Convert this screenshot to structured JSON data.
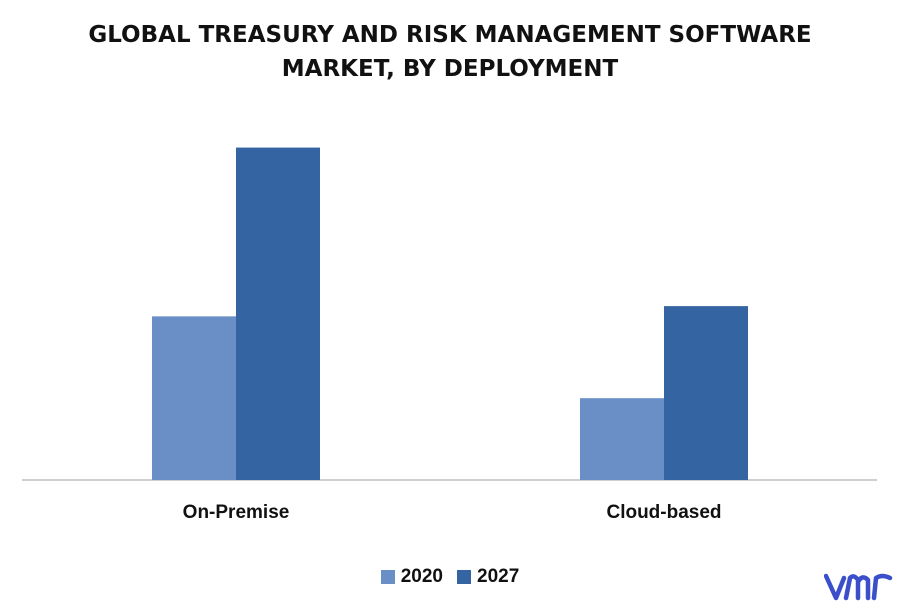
{
  "chart_data": {
    "type": "bar",
    "title_lines": [
      "GLOBAL TREASURY AND RISK MANAGEMENT SOFTWARE",
      "MARKET, BY DEPLOYMENT"
    ],
    "categories": [
      "On-Premise",
      "Cloud-based"
    ],
    "series": [
      {
        "name": "2020",
        "values": [
          3.2,
          1.6
        ],
        "color": "#6a8fc7"
      },
      {
        "name": "2027",
        "values": [
          6.5,
          3.4
        ],
        "color": "#3464a2"
      }
    ],
    "ylim": [
      0,
      7
    ],
    "grid": false,
    "legend_position": "bottom"
  },
  "logo": {
    "text": "vmr",
    "color": "#3a4fc9"
  }
}
